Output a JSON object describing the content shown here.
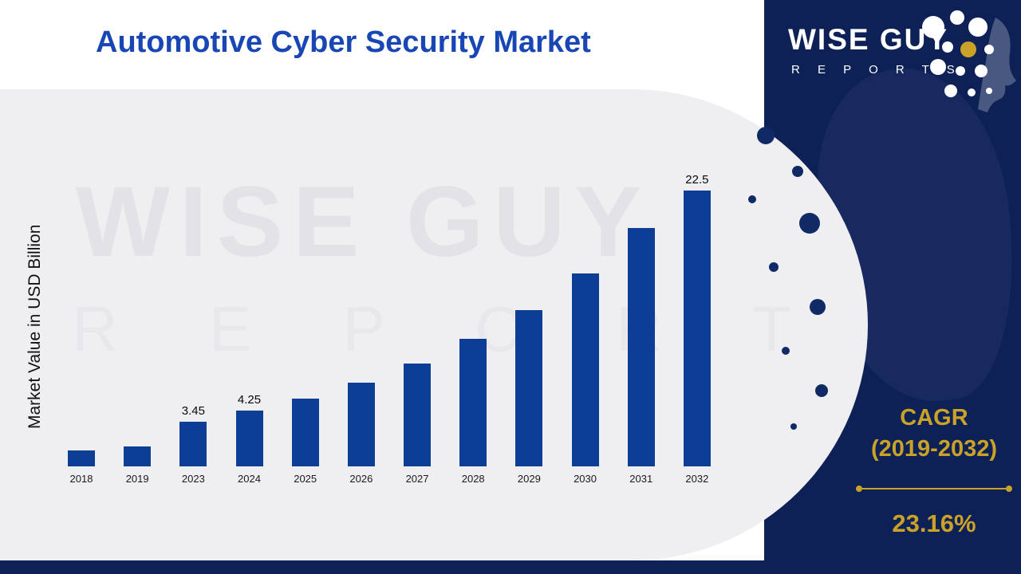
{
  "title": "Automotive Cyber Security Market",
  "y_axis_label": "Market Value in USD Billion",
  "logo": {
    "line1": "WISE GUY",
    "line2": "R E P O R T S"
  },
  "watermark": {
    "line1": "WISE GUY",
    "line2": "R E P O R T S"
  },
  "cagr": {
    "label": "CAGR",
    "range": "(2019-2032)",
    "value": "23.16%"
  },
  "colors": {
    "title_blue": "#1847b5",
    "bar_blue": "#0c3e96",
    "panel_navy": "#0d2156",
    "chart_bg": "#efeff1",
    "accent_gold": "#c9a227"
  },
  "chart_data": {
    "type": "bar",
    "title": "Automotive Cyber Security Market",
    "xlabel": "",
    "ylabel": "Market Value in USD Billion",
    "categories": [
      "2018",
      "2019",
      "2023",
      "2024",
      "2025",
      "2026",
      "2027",
      "2028",
      "2029",
      "2030",
      "2031",
      "2032"
    ],
    "values": [
      1.2,
      1.5,
      3.45,
      4.25,
      5.2,
      6.45,
      7.9,
      9.8,
      12.0,
      14.8,
      18.3,
      22.5
    ],
    "bar_labels": [
      "",
      "",
      "3.45",
      "4.25",
      "",
      "",
      "",
      "",
      "",
      "",
      "",
      "22.5"
    ],
    "ylim": [
      0,
      24
    ],
    "grid": false,
    "legend": false,
    "bar_color": "#0c3e96",
    "annotation_note": "CAGR (2019-2032) 23.16%"
  }
}
